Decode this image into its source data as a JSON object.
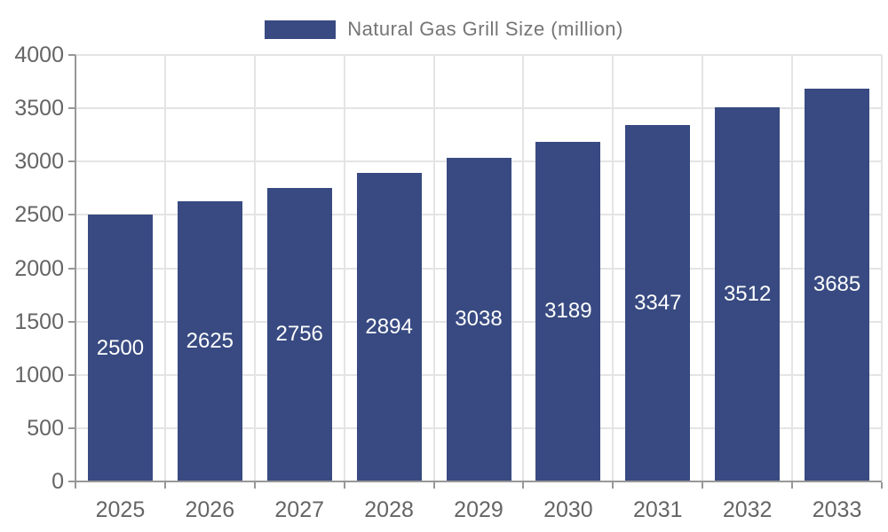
{
  "chart_data": {
    "type": "bar",
    "title": "Natural Gas Grill Size (million)",
    "legend": {
      "label": "Natural Gas Grill Size (million)",
      "position": "top-center"
    },
    "categories": [
      "2025",
      "2026",
      "2027",
      "2028",
      "2029",
      "2030",
      "2031",
      "2032",
      "2033"
    ],
    "values": [
      2500,
      2625,
      2756,
      2894,
      3038,
      3189,
      3347,
      3512,
      3685
    ],
    "xlabel": "",
    "ylabel": "",
    "ylim": [
      0,
      4000
    ],
    "yticks": [
      0,
      500,
      1000,
      1500,
      2000,
      2500,
      3000,
      3500,
      4000
    ],
    "grid": true,
    "bar_label_position": "inside-center",
    "colors": {
      "bar": "#384a81",
      "bar_label": "#ffffff",
      "gridline": "#e4e4e4",
      "axis_line": "#979797",
      "tick_label": "#656565",
      "legend_text": "#757575",
      "background": "#ffffff"
    }
  }
}
